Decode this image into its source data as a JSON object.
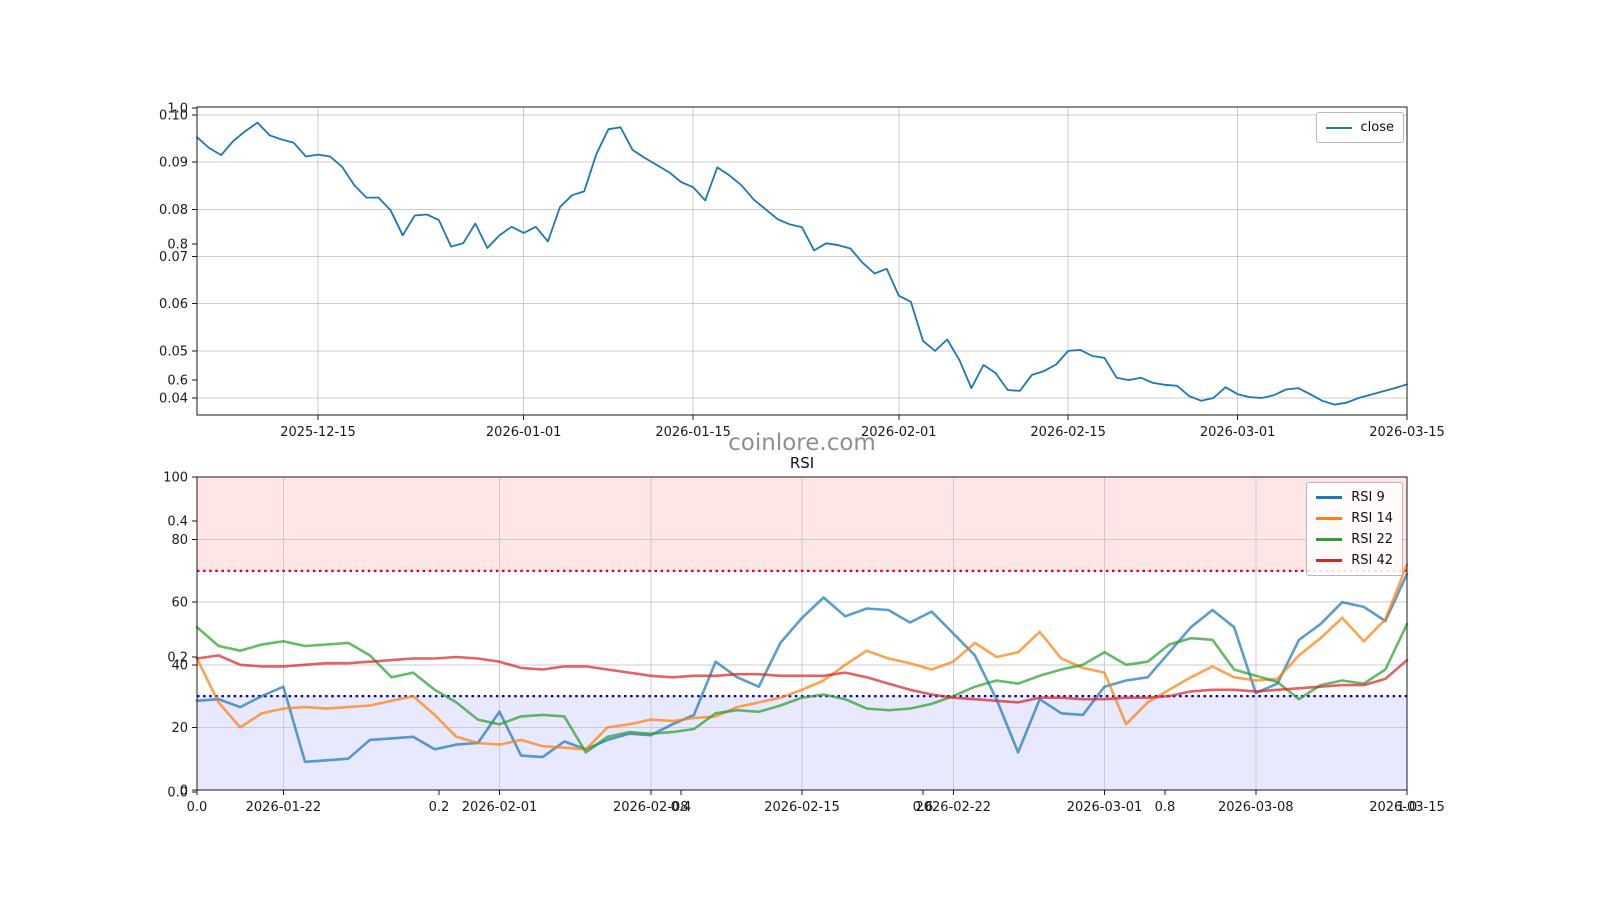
{
  "watermark": "coinlore.com",
  "chart_data": [
    {
      "type": "line",
      "name": "price-panel",
      "title": "",
      "xlabel": "",
      "ylabel": "",
      "grid": true,
      "legend_position": "upper right",
      "x_start_date": "2025-12-05",
      "x_ticks": [
        {
          "label": "2025-12-15",
          "day": 10
        },
        {
          "label": "2026-01-01",
          "day": 27
        },
        {
          "label": "2026-01-15",
          "day": 41
        },
        {
          "label": "2026-02-01",
          "day": 58
        },
        {
          "label": "2026-02-15",
          "day": 72
        },
        {
          "label": "2026-03-01",
          "day": 86
        },
        {
          "label": "2026-03-15",
          "day": 100
        }
      ],
      "y_ticks": [
        {
          "label": "0.10",
          "value": 0.1
        },
        {
          "label": "0.09",
          "value": 0.09
        },
        {
          "label": "0.08",
          "value": 0.08
        },
        {
          "label": "0.07",
          "value": 0.07
        },
        {
          "label": "0.06",
          "value": 0.06
        },
        {
          "label": "0.05",
          "value": 0.05
        },
        {
          "label": "0.04",
          "value": 0.04
        }
      ],
      "secondary_y_tick_labels": [
        "1.0",
        "0.8",
        "0.6"
      ],
      "ylim": [
        0.0364,
        0.1017
      ],
      "series": [
        {
          "name": "close",
          "color": "#1f77b4",
          "values": [
            0.0953,
            0.093,
            0.0915,
            0.0945,
            0.0966,
            0.0984,
            0.0957,
            0.0948,
            0.0941,
            0.0912,
            0.0916,
            0.0912,
            0.089,
            0.0851,
            0.0825,
            0.0825,
            0.0798,
            0.0745,
            0.0787,
            0.0789,
            0.0777,
            0.0721,
            0.0728,
            0.077,
            0.0718,
            0.0745,
            0.0763,
            0.075,
            0.0763,
            0.0732,
            0.0805,
            0.083,
            0.0838,
            0.0917,
            0.097,
            0.0974,
            0.0926,
            0.0909,
            0.0894,
            0.0879,
            0.0858,
            0.0847,
            0.0819,
            0.0889,
            0.0872,
            0.0851,
            0.0821,
            0.08,
            0.0779,
            0.0768,
            0.0762,
            0.0713,
            0.0728,
            0.0724,
            0.0717,
            0.0687,
            0.0664,
            0.0674,
            0.0617,
            0.0604,
            0.0521,
            0.05,
            0.0524,
            0.0481,
            0.0421,
            0.047,
            0.0453,
            0.0417,
            0.0415,
            0.0449,
            0.0457,
            0.0471,
            0.05,
            0.0502,
            0.0489,
            0.0485,
            0.0443,
            0.0438,
            0.0443,
            0.0432,
            0.0428,
            0.0426,
            0.0404,
            0.0394,
            0.04,
            0.0423,
            0.0408,
            0.0402,
            0.04,
            0.0406,
            0.0418,
            0.0421,
            0.0408,
            0.0394,
            0.0386,
            0.039,
            0.04,
            0.0407,
            0.0414,
            0.0421,
            0.0429
          ]
        }
      ]
    },
    {
      "type": "line",
      "name": "rsi-panel",
      "title": "RSI",
      "xlabel": "",
      "ylabel": "",
      "grid": true,
      "legend_position": "upper right",
      "x_start_date": "2026-01-18",
      "x_ticks": [
        {
          "label": "2026-01-22",
          "day": 4
        },
        {
          "label": "2026-02-01",
          "day": 14
        },
        {
          "label": "2026-02-08",
          "day": 21
        },
        {
          "label": "2026-02-15",
          "day": 28
        },
        {
          "label": "2026-02-22",
          "day": 35
        },
        {
          "label": "2026-03-01",
          "day": 42
        },
        {
          "label": "2026-03-08",
          "day": 49
        },
        {
          "label": "2026-03-15",
          "day": 56
        }
      ],
      "secondary_x_tick_labels": [
        "0.0",
        "0.2",
        "0.4",
        "0.6",
        "0.8",
        "1.0"
      ],
      "y_ticks": [
        {
          "label": "100",
          "value": 100
        },
        {
          "label": "80",
          "value": 80
        },
        {
          "label": "60",
          "value": 60
        },
        {
          "label": "40",
          "value": 40
        },
        {
          "label": "20",
          "value": 20
        },
        {
          "label": "0",
          "value": 0
        }
      ],
      "secondary_y_tick_labels": [
        "0.4",
        "0.2",
        "0.0"
      ],
      "ylim": [
        0,
        100
      ],
      "bands": [
        {
          "name": "overbought-band",
          "from": 70,
          "to": 100,
          "color": "rgba(255,0,0,0.10)"
        },
        {
          "name": "oversold-band",
          "from": 0,
          "to": 30,
          "color": "rgba(0,0,255,0.09)"
        }
      ],
      "hlines": [
        {
          "name": "overbought-line",
          "y": 70,
          "color": "#d4002e",
          "style": "dotted"
        },
        {
          "name": "oversold-line",
          "y": 30,
          "color": "#0000b4",
          "style": "dotted"
        }
      ],
      "series": [
        {
          "name": "RSI 9",
          "color": "#1f77b4",
          "values": [
            28.5,
            29,
            26.5,
            30,
            33,
            9,
            9.5,
            10,
            16,
            16.5,
            17,
            13,
            14.5,
            15,
            25,
            11,
            10.5,
            15.5,
            13,
            16,
            18,
            17.5,
            21,
            24,
            41,
            36,
            33,
            47,
            55,
            61.5,
            55.5,
            58,
            57.5,
            53.5,
            57,
            50,
            43,
            29,
            12,
            29,
            24.5,
            24,
            33,
            35,
            36,
            44,
            52,
            57.5,
            52,
            31,
            34,
            48,
            53,
            60,
            58.5,
            54,
            69
          ]
        },
        {
          "name": "RSI 14",
          "color": "#ff7f0e",
          "values": [
            42,
            28,
            20,
            24.5,
            26,
            26.5,
            26,
            26.5,
            27,
            28.5,
            30,
            24,
            17,
            15,
            14.5,
            16,
            14,
            13.5,
            13,
            20,
            21,
            22.5,
            22,
            23,
            23.5,
            26.5,
            28,
            29.5,
            32,
            35,
            40,
            44.5,
            42,
            40.5,
            38.5,
            41,
            47,
            42.5,
            44,
            50.5,
            42,
            39,
            37.5,
            21,
            28,
            32,
            36,
            39.5,
            36,
            35,
            35.5,
            43,
            48.5,
            55,
            47.5,
            54.5,
            72
          ]
        },
        {
          "name": "RSI 22",
          "color": "#2ca02c",
          "values": [
            52,
            46,
            44.5,
            46.5,
            47.5,
            46,
            46.5,
            47,
            43,
            36,
            37.5,
            32,
            28,
            22.5,
            21,
            23.5,
            24,
            23.5,
            12,
            17,
            18.5,
            18,
            18.5,
            19.5,
            24.5,
            25.5,
            25,
            27,
            29.5,
            30.5,
            29,
            26,
            25.5,
            26,
            27.5,
            30,
            33,
            35,
            34,
            36.5,
            38.5,
            40,
            44,
            40,
            41,
            46.5,
            48.5,
            48,
            38.5,
            36.5,
            34.5,
            29,
            33.5,
            35,
            34,
            38.5,
            53
          ]
        },
        {
          "name": "RSI 42",
          "color": "#d62728",
          "values": [
            42,
            43,
            40,
            39.5,
            39.5,
            40,
            40.5,
            40.5,
            41,
            41.5,
            42,
            42,
            42.5,
            42,
            41,
            39,
            38.5,
            39.5,
            39.5,
            38.5,
            37.5,
            36.5,
            36,
            36.5,
            36.5,
            37,
            37,
            36.5,
            36.5,
            36.5,
            37.5,
            36,
            34,
            32,
            30.5,
            29.5,
            29,
            28.5,
            28,
            29.5,
            29.5,
            29,
            29,
            29.5,
            29.5,
            30,
            31.5,
            32,
            32,
            31.5,
            32,
            32.5,
            33,
            33.5,
            33.5,
            35.5,
            41.5
          ]
        }
      ]
    }
  ]
}
